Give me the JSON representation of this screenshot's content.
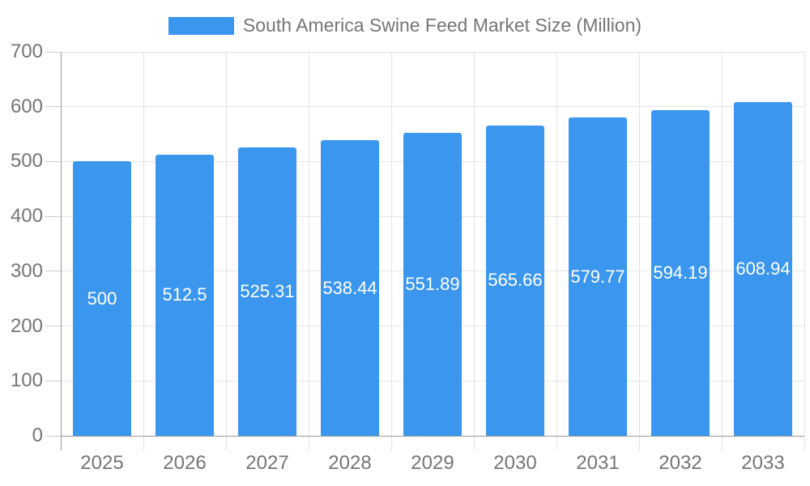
{
  "legend": {
    "label": "South America Swine Feed Market Size (Million)",
    "swatch_color": "#3b96ed"
  },
  "chart_data": {
    "type": "bar",
    "title": "South America Swine Feed Market Size (Million)",
    "categories": [
      "2025",
      "2026",
      "2027",
      "2028",
      "2029",
      "2030",
      "2031",
      "2032",
      "2033"
    ],
    "values": [
      500,
      512.5,
      525.31,
      538.44,
      551.89,
      565.66,
      579.77,
      594.19,
      608.94
    ],
    "value_labels": [
      "500",
      "512.5",
      "525.31",
      "538.44",
      "551.89",
      "565.66",
      "579.77",
      "594.19",
      "608.94"
    ],
    "xlabel": "",
    "ylabel": "",
    "ylim": [
      0,
      700
    ],
    "ytick_step": 100,
    "ytick_labels": [
      "0",
      "100",
      "200",
      "300",
      "400",
      "500",
      "600",
      "700"
    ],
    "grid": true,
    "legend_position": "top",
    "bar_color": "#3b96ed",
    "bar_label_color": "#ffffff",
    "axis_label_color": "#757575",
    "gridline_color": "#e6e6e6",
    "axis_line_color": "#999999"
  }
}
